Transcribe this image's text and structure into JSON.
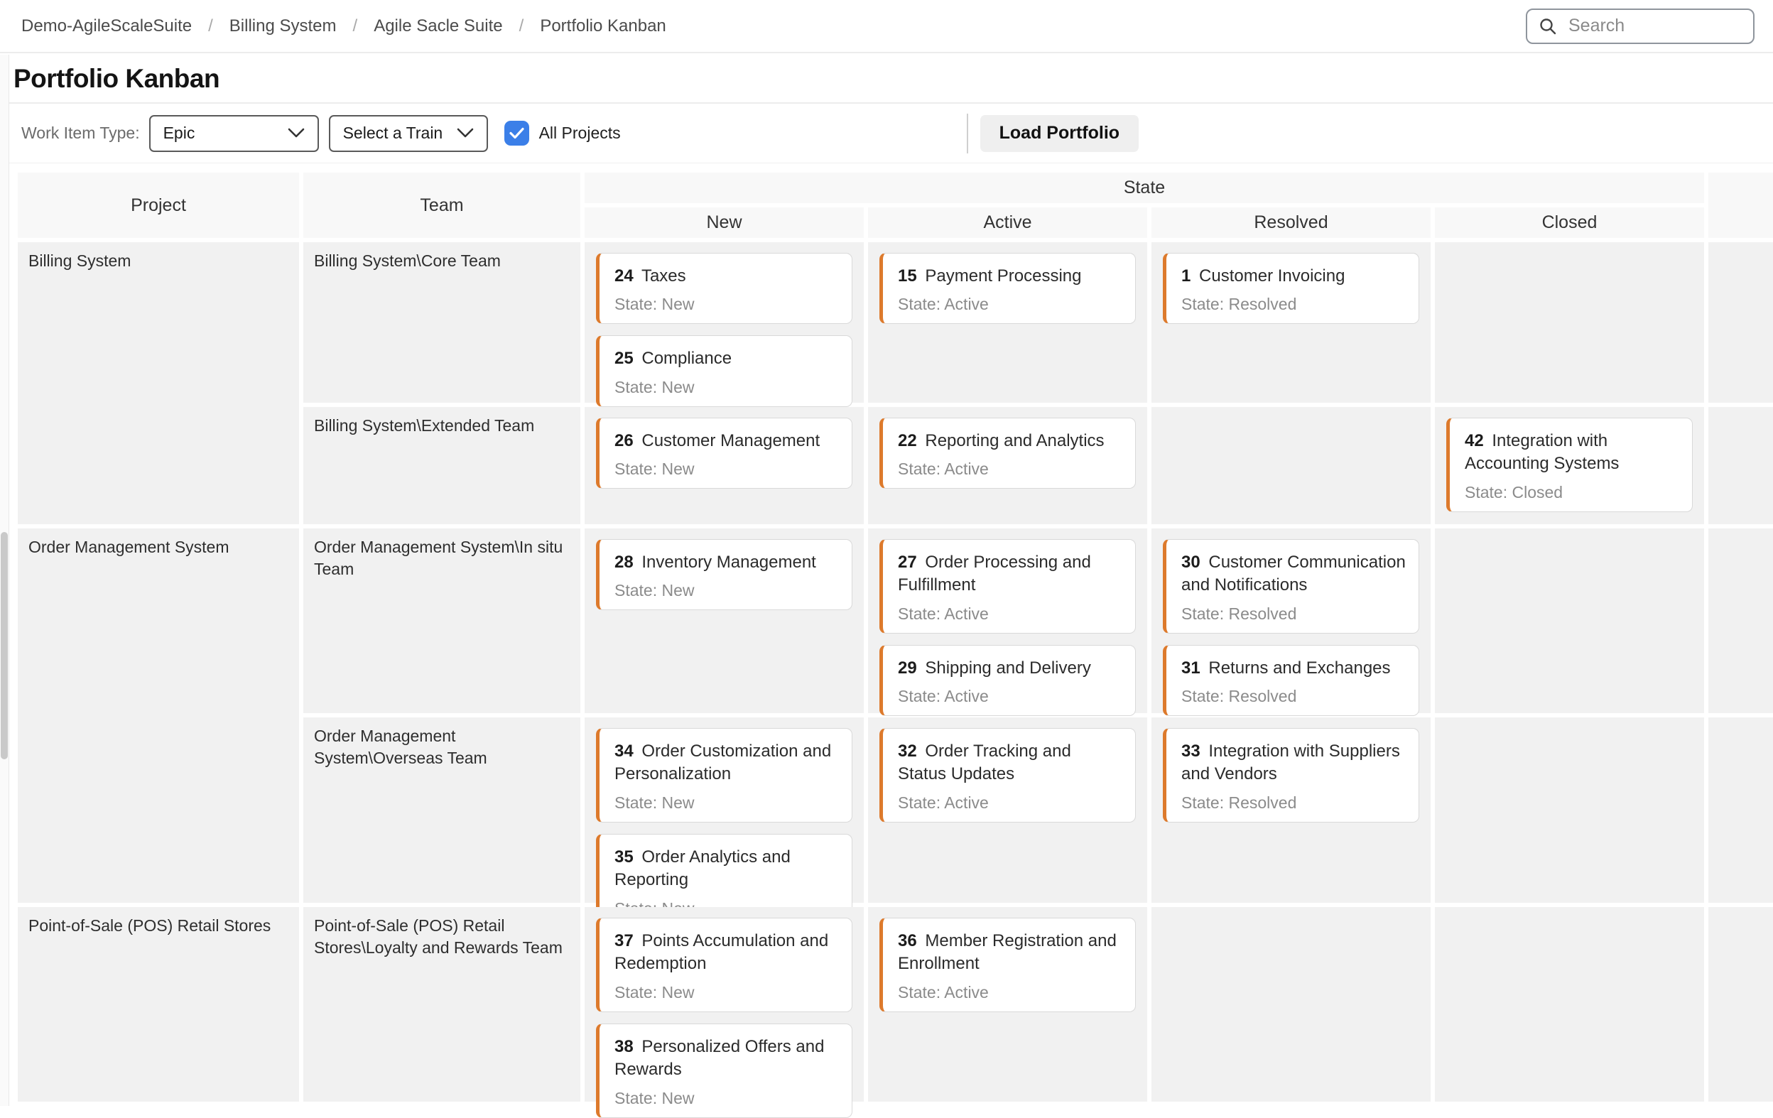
{
  "topbar": {
    "breadcrumb": [
      "Demo-AgileScaleSuite",
      "Billing System",
      "Agile Sacle Suite",
      "Portfolio Kanban"
    ],
    "breadcrumb_separator": "/",
    "search_placeholder": "Search"
  },
  "page": {
    "title": "Portfolio Kanban"
  },
  "toolbar": {
    "work_item_type_label": "Work Item Type:",
    "work_item_type_value": "Epic",
    "train_select_value": "Select a Train",
    "all_projects_label": "All Projects",
    "all_projects_checked": true,
    "load_portfolio_label": "Load Portfolio"
  },
  "board": {
    "column_headers": {
      "project": "Project",
      "team": "Team",
      "state_group": "State"
    },
    "states": [
      "New",
      "Active",
      "Resolved",
      "Closed"
    ],
    "state_prefix": "State:",
    "projects": [
      {
        "name": "Billing System",
        "teams": [
          {
            "name": "Billing System\\Core Team",
            "cards": {
              "New": [
                {
                  "id": "24",
                  "title": "Taxes",
                  "state": "New"
                },
                {
                  "id": "25",
                  "title": "Compliance",
                  "state": "New"
                }
              ],
              "Active": [
                {
                  "id": "15",
                  "title": "Payment Processing",
                  "state": "Active"
                }
              ],
              "Resolved": [
                {
                  "id": "1",
                  "title": "Customer Invoicing",
                  "state": "Resolved"
                }
              ],
              "Closed": []
            }
          },
          {
            "name": "Billing System\\Extended Team",
            "cards": {
              "New": [
                {
                  "id": "26",
                  "title": "Customer Management",
                  "state": "New"
                }
              ],
              "Active": [
                {
                  "id": "22",
                  "title": "Reporting and Analytics",
                  "state": "Active"
                }
              ],
              "Resolved": [],
              "Closed": [
                {
                  "id": "42",
                  "title": "Integration with Accounting Systems",
                  "state": "Closed"
                }
              ]
            }
          }
        ]
      },
      {
        "name": "Order Management System",
        "teams": [
          {
            "name": "Order Management System\\In situ Team",
            "cards": {
              "New": [
                {
                  "id": "28",
                  "title": "Inventory Management",
                  "state": "New"
                }
              ],
              "Active": [
                {
                  "id": "27",
                  "title": "Order Processing and Fulfillment",
                  "state": "Active"
                },
                {
                  "id": "29",
                  "title": "Shipping and Delivery",
                  "state": "Active"
                }
              ],
              "Resolved": [
                {
                  "id": "30",
                  "title": "Customer Communication and Notifications",
                  "state": "Resolved"
                },
                {
                  "id": "31",
                  "title": "Returns and Exchanges",
                  "state": "Resolved"
                }
              ],
              "Closed": []
            }
          },
          {
            "name": "Order Management System\\Overseas Team",
            "cards": {
              "New": [
                {
                  "id": "34",
                  "title": "Order Customization and Personalization",
                  "state": "New"
                },
                {
                  "id": "35",
                  "title": "Order Analytics and Reporting",
                  "state": "New"
                }
              ],
              "Active": [
                {
                  "id": "32",
                  "title": "Order Tracking and Status Updates",
                  "state": "Active"
                }
              ],
              "Resolved": [
                {
                  "id": "33",
                  "title": "Integration with Suppliers and Vendors",
                  "state": "Resolved"
                }
              ],
              "Closed": []
            }
          }
        ]
      },
      {
        "name": "Point-of-Sale (POS) Retail Stores",
        "teams": [
          {
            "name": "Point-of-Sale (POS) Retail Stores\\Loyalty and Rewards Team",
            "cards": {
              "New": [
                {
                  "id": "37",
                  "title": "Points Accumulation and Redemption",
                  "state": "New"
                },
                {
                  "id": "38",
                  "title": "Personalized Offers and Rewards",
                  "state": "New"
                }
              ],
              "Active": [
                {
                  "id": "36",
                  "title": "Member Registration and Enrollment",
                  "state": "Active"
                }
              ],
              "Resolved": [],
              "Closed": []
            }
          }
        ]
      }
    ]
  },
  "colors": {
    "card_accent": "#DD7A2C",
    "checkbox_checked": "#3B7FE8",
    "header_cell_bg": "#f8f8f8",
    "body_cell_bg": "#f1f1f1"
  }
}
